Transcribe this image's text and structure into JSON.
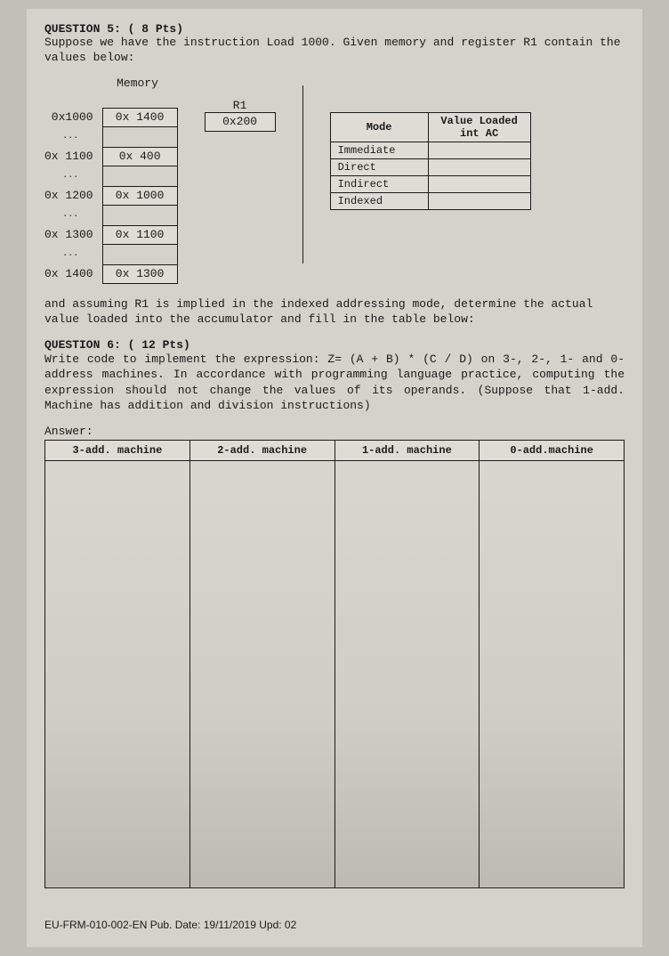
{
  "q5": {
    "header": "QUESTION 5: ( 8 Pts)",
    "text1": "Suppose we have the instruction Load 1000. Given memory and register R1 contain the values below:",
    "memory_label": "Memory",
    "memory": [
      {
        "addr": "0x1000",
        "val": "0x 1400"
      },
      {
        "addr": "0x 1100",
        "val": "0x  400"
      },
      {
        "addr": "0x 1200",
        "val": "0x 1000"
      },
      {
        "addr": "0x 1300",
        "val": "0x 1100"
      },
      {
        "addr": "0x 1400",
        "val": "0x 1300"
      }
    ],
    "gap": "...",
    "r1_label": "R1",
    "r1_value": "0x200",
    "mode_header_mode": "Mode",
    "mode_header_value": "Value Loaded int AC",
    "modes": [
      "Immediate",
      "Direct",
      "Indirect",
      "Indexed"
    ],
    "text2": "and assuming R1 is implied in the indexed addressing mode, determine the actual value loaded into the accumulator and fill in the table below:"
  },
  "q6": {
    "header": "QUESTION 6: ( 12 Pts)",
    "text": "Write code to implement the expression: Z= (A + B) * (C / D) on 3-, 2-, 1- and 0-address machines. In accordance with programming language practice, computing the expression should not change the values of its operands. (Suppose that 1-add. Machine has addition and division instructions)",
    "answer_label": "Answer:",
    "cols": [
      "3-add. machine",
      "2-add. machine",
      "1-add. machine",
      "0-add.machine"
    ]
  },
  "footer": "EU-FRM-010-002-EN Pub. Date: 19/11/2019 Upd: 02"
}
